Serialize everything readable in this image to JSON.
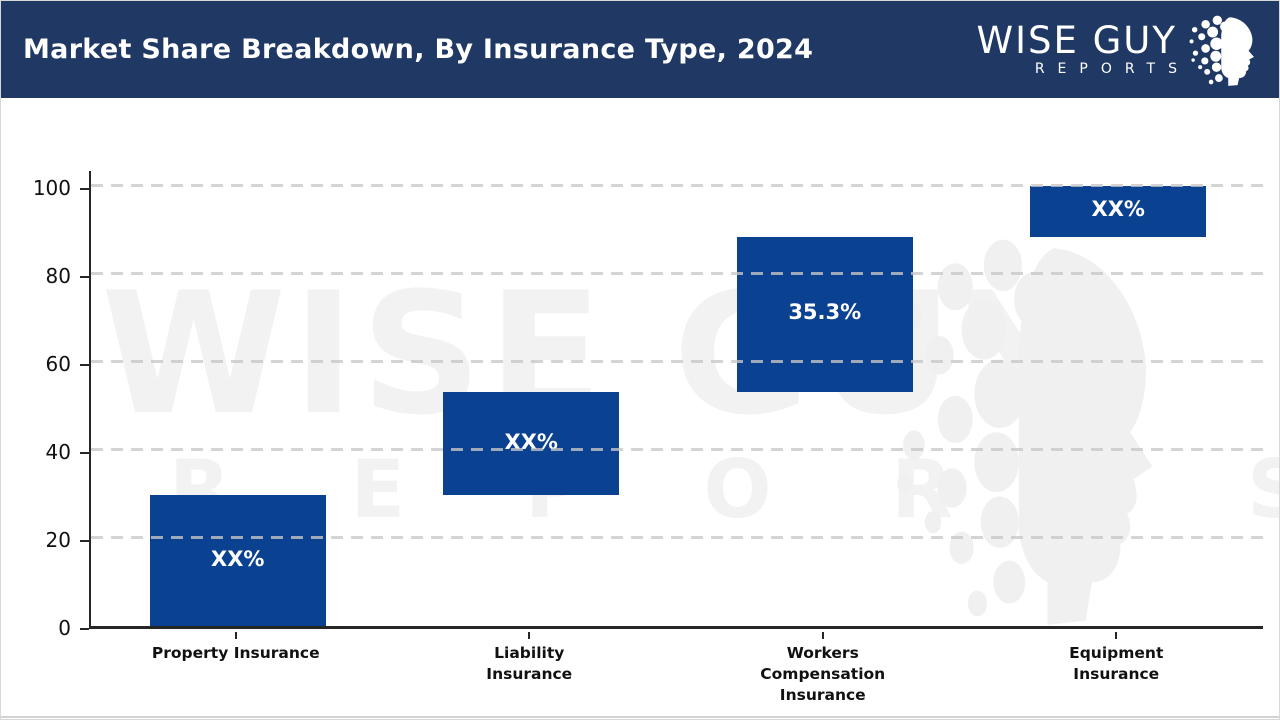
{
  "header": {
    "title": "Market Share Breakdown, By Insurance Type, 2024",
    "bg_color": "#1f3864",
    "logo": {
      "line1": "WISE GUY",
      "line2": "REPORTS"
    }
  },
  "watermark": {
    "line1": "WISE GUY",
    "line2": "R E P O R T S"
  },
  "icons": {
    "logo_head": "head-dots",
    "watermark_head": "head-dots"
  },
  "chart_data": {
    "type": "bar",
    "subtype": "waterfall-floating-bars",
    "title": "Market Share Breakdown, By Insurance Type, 2024",
    "categories": [
      "Property Insurance",
      "Liability Insurance",
      "Workers Compensation Insurance",
      "Equipment Insurance"
    ],
    "bars": [
      {
        "category": "Property Insurance",
        "label_lines": [
          "Property Insurance"
        ],
        "start": 0,
        "end": 29.7,
        "value_label": "XX%"
      },
      {
        "category": "Liability Insurance",
        "label_lines": [
          "Liability",
          "Insurance"
        ],
        "start": 29.7,
        "end": 53.2,
        "value_label": "XX%"
      },
      {
        "category": "Workers Compensation Insurance",
        "label_lines": [
          "Workers",
          "Compensation",
          "Insurance"
        ],
        "start": 53.2,
        "end": 88.5,
        "value_label": "35.3%"
      },
      {
        "category": "Equipment Insurance",
        "label_lines": [
          "Equipment",
          "Insurance"
        ],
        "start": 88.5,
        "end": 100,
        "value_label": "XX%"
      }
    ],
    "xlabel": "",
    "ylabel": "",
    "ylim": [
      0,
      100
    ],
    "yticks": [
      0,
      20,
      40,
      60,
      80,
      100
    ],
    "grid": "horizontal-dashed-over-bars",
    "legend": "none",
    "bar_color": "#0a4190",
    "bar_label_color": "#ffffff",
    "axis_color": "#262626",
    "gridline_color": "#c7c7c7"
  }
}
